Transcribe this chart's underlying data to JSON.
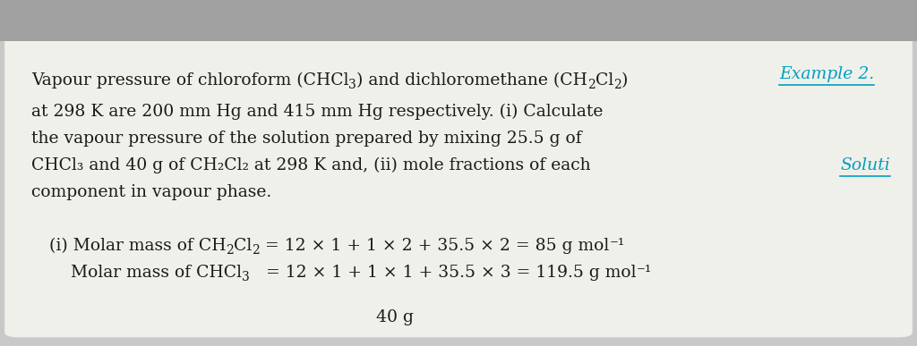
{
  "background_color": "#c8c8c8",
  "paper_color": "#f0f0eb",
  "top_bar_color": "#a0a0a0",
  "text_color": "#1a1a1a",
  "example_color": "#00a0c0",
  "solution_color": "#00a0c0",
  "example_label": "Example 2.",
  "solution_label": "Soluti",
  "line1_main": "Vapour pressure of chloroform (CHCl",
  "line1_sub1": "3",
  "line1_mid": ") and dichloromethane (CH",
  "line1_sub2": "2",
  "line1_cl": "Cl",
  "line1_sub3": "2",
  "line1_end": ")",
  "body_lines": [
    "at 298 K are 200 mm Hg and 415 mm Hg respectively. (i) Calculate",
    "the vapour pressure of the solution prepared by mixing 25.5 g of",
    "CHCl₃ and 40 g of CH₂Cl₂ at 298 K and, (ii) mole fractions of each",
    "component in vapour phase."
  ],
  "molar1_pre": "(i) Molar mass of CH",
  "molar1_sub1": "2",
  "molar1_cl": "Cl",
  "molar1_sub2": "2",
  "molar1_post": " = 12 × 1 + 1 × 2 + 35.5 × 2 = 85 g mol",
  "molar1_sup": "⁻¹",
  "molar2_pre": "    Molar mass of CHCl",
  "molar2_sub": "3",
  "molar2_post": "   = 12 × 1 + 1 × 1 + 35.5 × 3 = 119.5 g mol",
  "molar2_sup": "⁻¹",
  "bottom_text": "40 g",
  "fs_main": 13.5,
  "fs_sub": 10.0
}
